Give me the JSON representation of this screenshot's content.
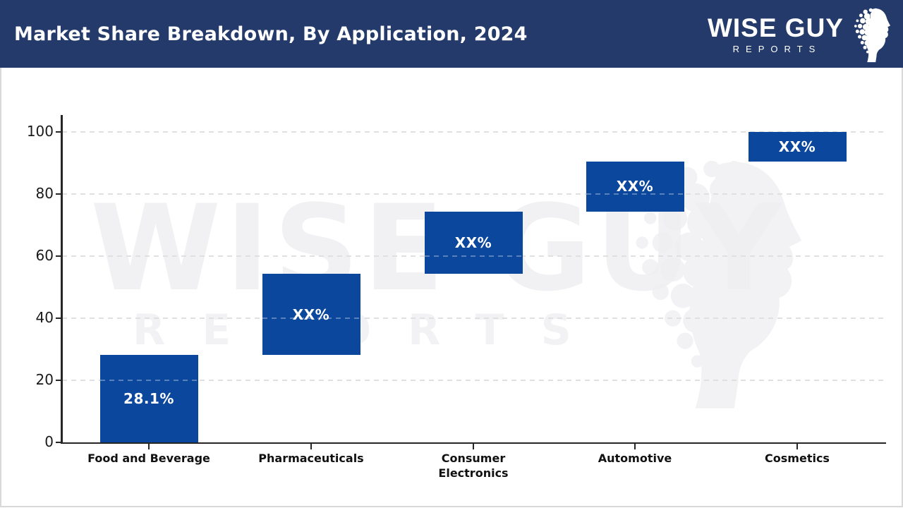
{
  "header": {
    "title": "Market Share Breakdown, By Application, 2024",
    "bg_color": "#233a6b",
    "logo": {
      "name": "WISE GUY",
      "sub": "REPORTS"
    }
  },
  "watermark": {
    "line1": "WISE GUY",
    "line2": "REPORTS"
  },
  "chart_data": {
    "type": "bar",
    "subtype": "waterfall",
    "title": "Market Share Breakdown, By Application, 2024",
    "categories": [
      "Food and Beverage",
      "Pharmaceuticals",
      "Consumer\nElectronics",
      "Automotive",
      "Cosmetics"
    ],
    "segments": [
      {
        "category": "Food and Beverage",
        "start": 0,
        "end": 28.1,
        "label": "28.1%"
      },
      {
        "category": "Pharmaceuticals",
        "start": 28.1,
        "end": 54.3,
        "label": "XX%"
      },
      {
        "category": "Consumer Electronics",
        "start": 54.3,
        "end": 74.4,
        "label": "XX%"
      },
      {
        "category": "Automotive",
        "start": 74.4,
        "end": 90.4,
        "label": "XX%"
      },
      {
        "category": "Cosmetics",
        "start": 90.4,
        "end": 100,
        "label": "XX%"
      }
    ],
    "yticks": [
      0,
      20,
      40,
      60,
      80,
      100
    ],
    "ylim": [
      0,
      105.5
    ],
    "xlabel": "",
    "ylabel": "",
    "bar_color": "#0b479d",
    "bar_label_color": "#ffffff",
    "grid": {
      "show": true,
      "axis": "y",
      "style": "dashed",
      "color": "#e0e0e0"
    },
    "legend_position": "none"
  }
}
